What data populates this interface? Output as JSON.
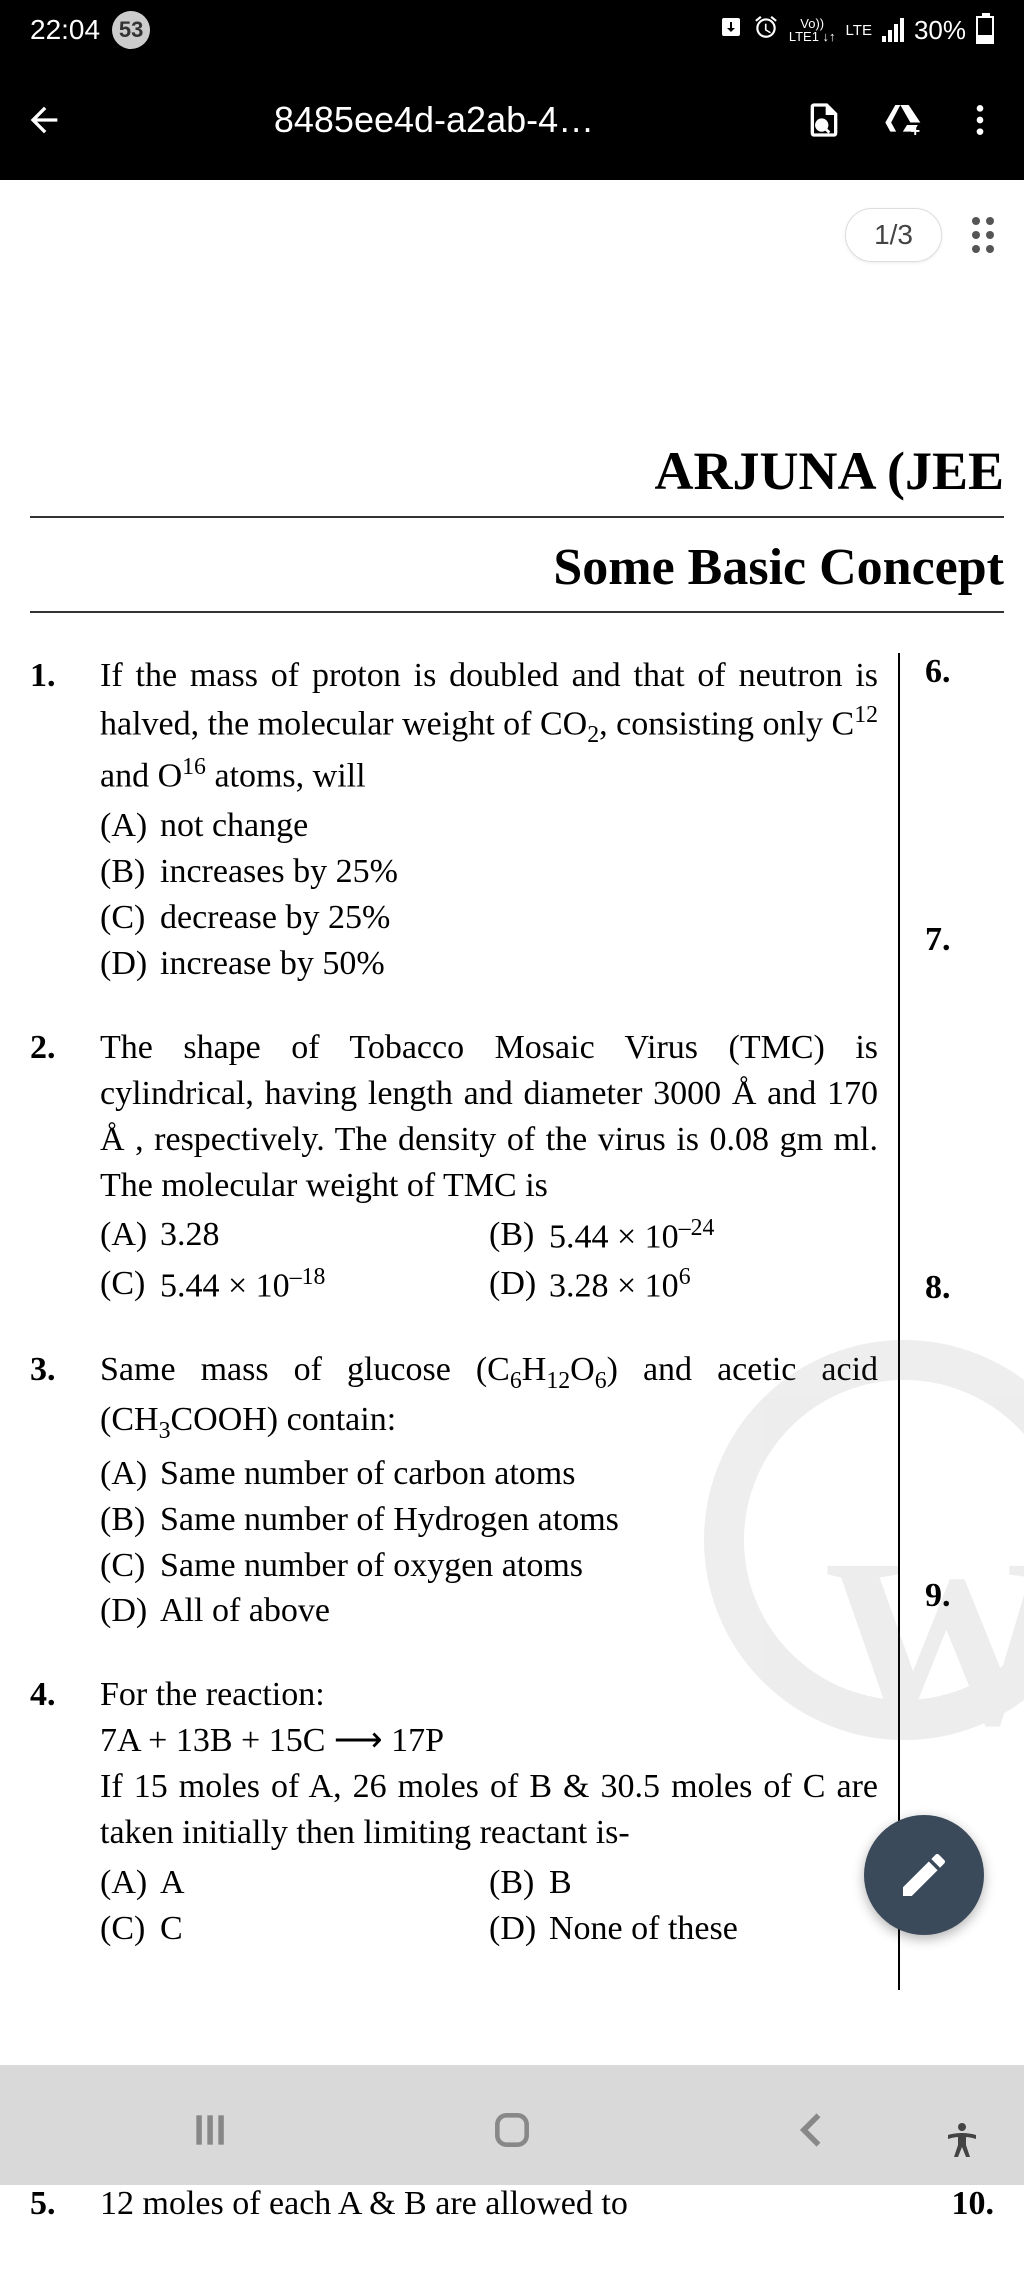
{
  "status": {
    "time": "22:04",
    "notif_count": "53",
    "volte": "Vo))",
    "lte": "LTE",
    "lte_sub": "LTE1 ↓↑",
    "battery": "30%"
  },
  "appbar": {
    "title": "8485ee4d-a2ab-4…"
  },
  "toolbar": {
    "page_indicator": "1/3"
  },
  "doc": {
    "heading1": "ARJUNA (JEE",
    "heading2": "Some Basic Concept",
    "right_numbers": [
      "6.",
      "7.",
      "8.",
      "9."
    ],
    "questions": [
      {
        "num": "1.",
        "stem_html": "If the mass of proton is doubled and that of neutron is halved, the molecular weight of CO<sub>2</sub>, consisting only C<sup>12</sup> and O<sup>16</sup> atoms, will",
        "layout": "1col",
        "options": [
          {
            "label": "(A)",
            "text": "not change"
          },
          {
            "label": "(B)",
            "text": "increases by 25%"
          },
          {
            "label": "(C)",
            "text": "decrease by 25%"
          },
          {
            "label": "(D)",
            "text": "increase by 50%"
          }
        ]
      },
      {
        "num": "2.",
        "stem_html": "The shape of Tobacco Mosaic Virus (TMC) is cylindrical, having length and diameter 3000 Å and 170 Å , respectively. The density of the virus is 0.08 gm ml. The molecular weight of TMC is",
        "layout": "2col",
        "options": [
          {
            "label": "(A)",
            "text": "3.28"
          },
          {
            "label": "(B)",
            "text": "5.44 × 10<sup>–24</sup>"
          },
          {
            "label": "(C)",
            "text": "5.44 × 10<sup>–18</sup>"
          },
          {
            "label": "(D)",
            "text": "3.28 × 10<sup>6</sup>"
          }
        ]
      },
      {
        "num": "3.",
        "stem_html": "Same mass of glucose (C<sub>6</sub>H<sub>12</sub>O<sub>6</sub>) and acetic acid (CH<sub>3</sub>COOH) contain:",
        "layout": "1col",
        "options": [
          {
            "label": "(A)",
            "text": "Same number of carbon atoms"
          },
          {
            "label": "(B)",
            "text": "Same number of Hydrogen atoms"
          },
          {
            "label": "(C)",
            "text": "Same number of oxygen atoms"
          },
          {
            "label": "(D)",
            "text": "All of above"
          }
        ]
      },
      {
        "num": "4.",
        "stem_html": "For the reaction:<br>7A + 13B + 15C ⟶ 17P<br>If 15 moles of A, 26 moles of B &amp; 30.5 moles of C are taken initially then limiting reactant is-",
        "layout": "2col",
        "options": [
          {
            "label": "(A)",
            "text": "A"
          },
          {
            "label": "(B)",
            "text": "B"
          },
          {
            "label": "(C)",
            "text": "C"
          },
          {
            "label": "(D)",
            "text": "None of these"
          }
        ]
      }
    ],
    "partial_q": {
      "num": "5.",
      "text": "12 moles of each A & B are allowed to",
      "right_num": "10."
    }
  },
  "colors": {
    "status_bg": "#000000",
    "fab_bg": "#3a4a5a",
    "text": "#000000"
  }
}
